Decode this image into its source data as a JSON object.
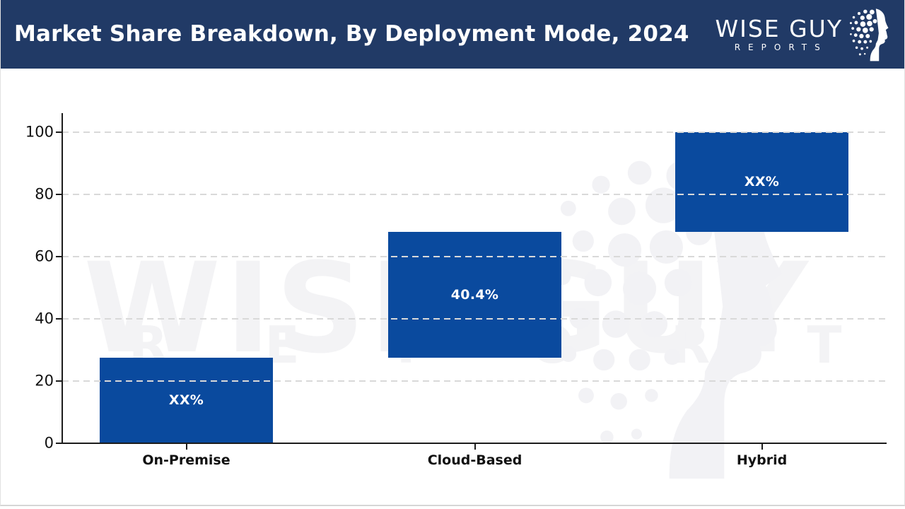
{
  "header": {
    "title": "Market Share Breakdown, By Deployment Mode, 2024",
    "bg_color": "#213a66",
    "logo": {
      "line1": "WISE GUY",
      "line2": "REPORTS",
      "face_icon": "dotted-head-profile"
    }
  },
  "watermark": {
    "line1": "WISE GUY",
    "line2": "REPORTS"
  },
  "chart_data": {
    "type": "bar",
    "subtype": "waterfall-floating-segments",
    "title": "Market Share Breakdown, By Deployment Mode, 2024",
    "categories": [
      "On-Premise",
      "Cloud-Based",
      "Hybrid"
    ],
    "segments": [
      {
        "category": "On-Premise",
        "start": 0,
        "end": 27.6,
        "value_label": "XX%"
      },
      {
        "category": "Cloud-Based",
        "start": 27.6,
        "end": 68.0,
        "value_label": "40.4%"
      },
      {
        "category": "Hybrid",
        "start": 68.0,
        "end": 100.0,
        "value_label": "XX%"
      }
    ],
    "xlabel": "",
    "ylabel": "",
    "ylim": [
      0,
      100
    ],
    "yticks": [
      0,
      20,
      40,
      60,
      80,
      100
    ],
    "grid": "horizontal dashed, drawn over bars",
    "legend": "none",
    "bar_color": "#0a4a9e",
    "gridline_color": "#d9d9d9",
    "axis_color": "#1c1c1c"
  }
}
